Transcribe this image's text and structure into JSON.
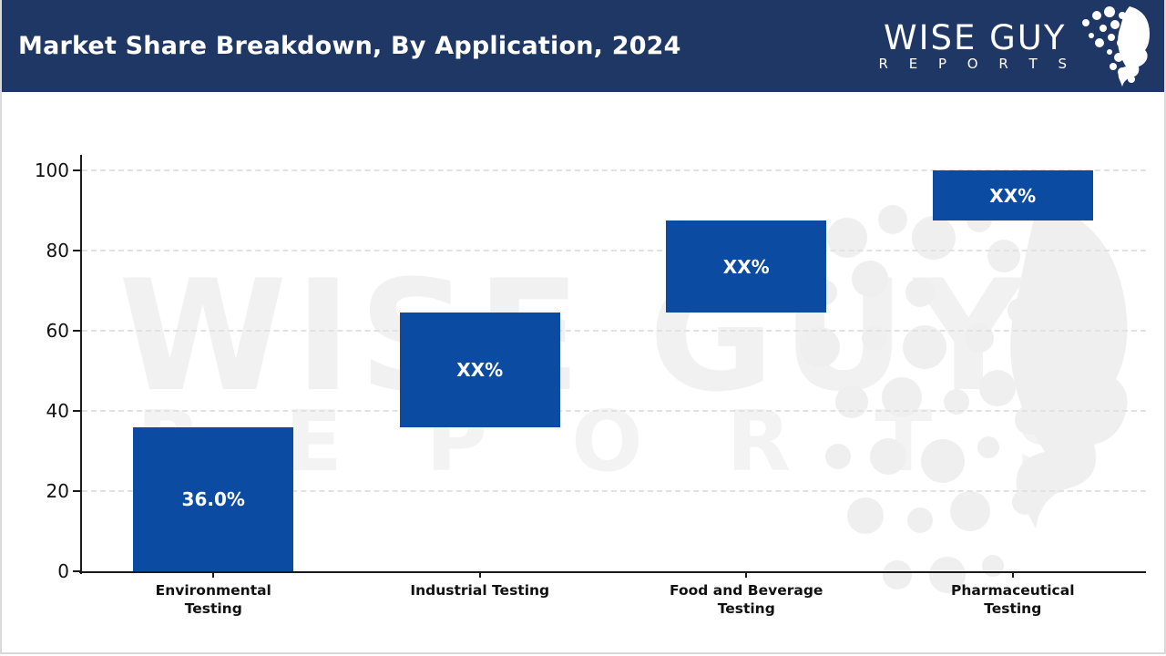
{
  "header": {
    "title": "Market Share Breakdown, By Application, 2024",
    "bg_color": "#1f3765",
    "logo": {
      "line1": "WISE GUY",
      "line2": "R E P O R T S"
    }
  },
  "watermark": {
    "line1": "WISE GUY",
    "line2": "R E P O R T S"
  },
  "chart_data": {
    "type": "bar",
    "subtype": "waterfall",
    "title": "Market Share Breakdown, By Application, 2024",
    "xlabel": "",
    "ylabel": "",
    "ylim": [
      0,
      100
    ],
    "yticks": [
      0,
      20,
      40,
      60,
      80,
      100
    ],
    "grid": "horizontal-dashed",
    "legend": "none",
    "bar_color": "#0b4ba1",
    "value_label_color": "#ffffff",
    "categories": [
      "Environmental Testing",
      "Industrial Testing",
      "Food and Beverage Testing",
      "Pharmaceutical Testing"
    ],
    "category_label_lines": [
      [
        "Environmental",
        "Testing"
      ],
      [
        "Industrial Testing"
      ],
      [
        "Food and Beverage",
        "Testing"
      ],
      [
        "Pharmaceutical",
        "Testing"
      ]
    ],
    "segments": [
      {
        "category": "Environmental Testing",
        "start": 0,
        "end": 36,
        "label": "36.0%"
      },
      {
        "category": "Industrial Testing",
        "start": 36,
        "end": 64.5,
        "label": "XX%"
      },
      {
        "category": "Food and Beverage Testing",
        "start": 64.5,
        "end": 87.5,
        "label": "XX%"
      },
      {
        "category": "Pharmaceutical Testing",
        "start": 87.5,
        "end": 100,
        "label": "XX%"
      }
    ]
  }
}
